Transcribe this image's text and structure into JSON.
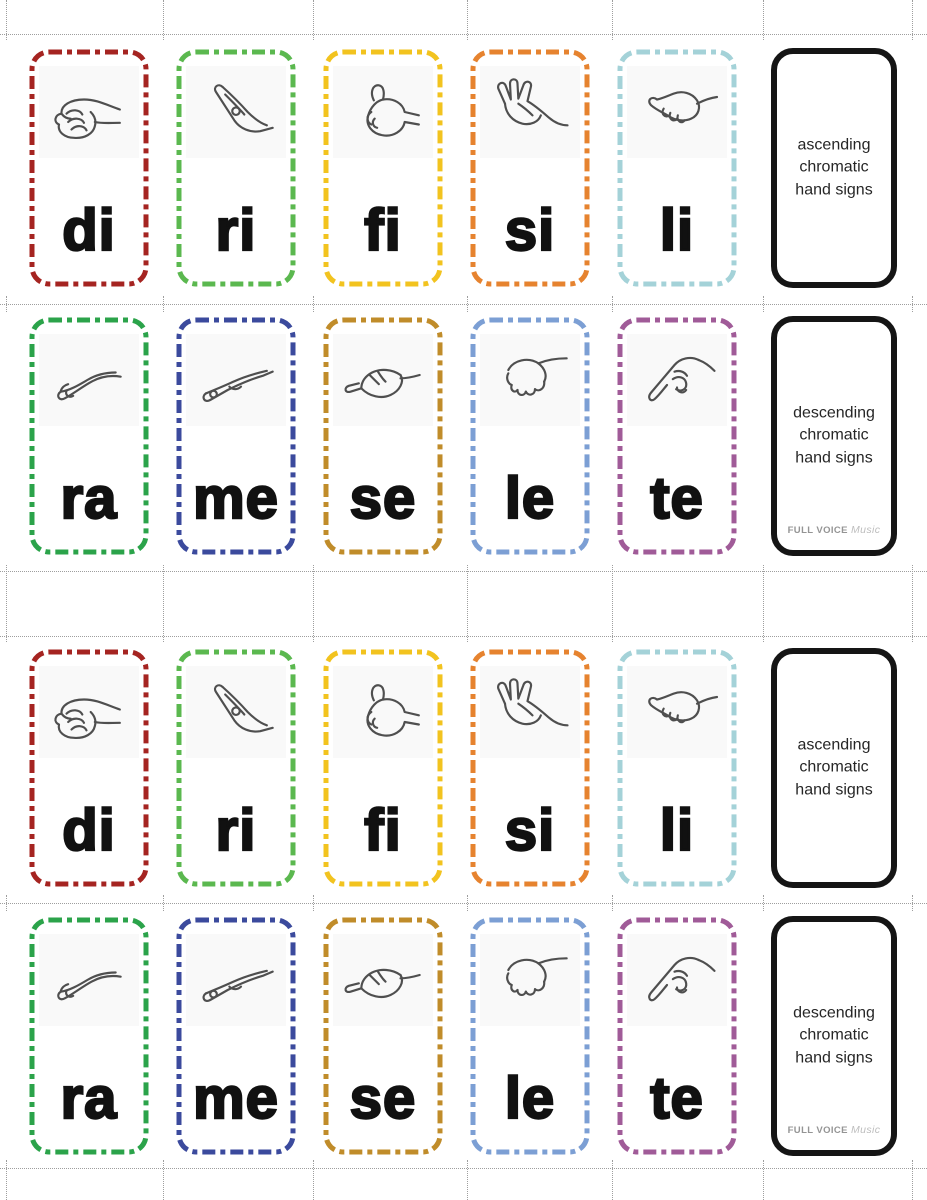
{
  "page": {
    "description": "printable chromatic solfege hand-sign flashcards",
    "cut_line_color": "#9e9e9e"
  },
  "rows": [
    {
      "name": "ascending-row-1",
      "cards": [
        {
          "label": "di",
          "color": "#a52421",
          "sign": "fist-icon"
        },
        {
          "label": "ri",
          "color": "#5bb84f",
          "sign": "hand-angled-up-icon"
        },
        {
          "label": "fi",
          "color": "#f2c31f",
          "sign": "thumb-up-icon"
        },
        {
          "label": "si",
          "color": "#e6832f",
          "sign": "open-palm-out-icon"
        },
        {
          "label": "li",
          "color": "#a4d2d8",
          "sign": "relaxed-hand-down-icon"
        }
      ],
      "info": {
        "line1": "ascending",
        "line2": "chromatic",
        "line3": "hand signs"
      }
    },
    {
      "name": "descending-row-1",
      "cards": [
        {
          "label": "ra",
          "color": "#2ba34a",
          "sign": "hand-angled-down-icon"
        },
        {
          "label": "me",
          "color": "#3b4a9d",
          "sign": "flat-hand-down-icon"
        },
        {
          "label": "se",
          "color": "#c08c2a",
          "sign": "open-palm-up-icon"
        },
        {
          "label": "le",
          "color": "#7c9fd4",
          "sign": "hanging-hand-icon"
        },
        {
          "label": "te",
          "color": "#a05b98",
          "sign": "index-down-icon"
        }
      ],
      "info": {
        "line1": "descending",
        "line2": "chromatic",
        "line3": "hand signs"
      },
      "logo": {
        "brand": "FULL VOICE",
        "word": "Music"
      }
    },
    {
      "name": "ascending-row-2",
      "cards": [
        {
          "label": "di",
          "color": "#a52421",
          "sign": "fist-icon"
        },
        {
          "label": "ri",
          "color": "#5bb84f",
          "sign": "hand-angled-up-icon"
        },
        {
          "label": "fi",
          "color": "#f2c31f",
          "sign": "thumb-up-icon"
        },
        {
          "label": "si",
          "color": "#e6832f",
          "sign": "open-palm-out-icon"
        },
        {
          "label": "li",
          "color": "#a4d2d8",
          "sign": "relaxed-hand-down-icon"
        }
      ],
      "info": {
        "line1": "ascending",
        "line2": "chromatic",
        "line3": "hand signs"
      }
    },
    {
      "name": "descending-row-2",
      "cards": [
        {
          "label": "ra",
          "color": "#2ba34a",
          "sign": "hand-angled-down-icon"
        },
        {
          "label": "me",
          "color": "#3b4a9d",
          "sign": "flat-hand-down-icon"
        },
        {
          "label": "se",
          "color": "#c08c2a",
          "sign": "open-palm-up-icon"
        },
        {
          "label": "le",
          "color": "#7c9fd4",
          "sign": "hanging-hand-icon"
        },
        {
          "label": "te",
          "color": "#a05b98",
          "sign": "index-down-icon"
        }
      ],
      "info": {
        "line1": "descending",
        "line2": "chromatic",
        "line3": "hand signs"
      },
      "logo": {
        "brand": "FULL VOICE",
        "word": "Music"
      }
    }
  ]
}
